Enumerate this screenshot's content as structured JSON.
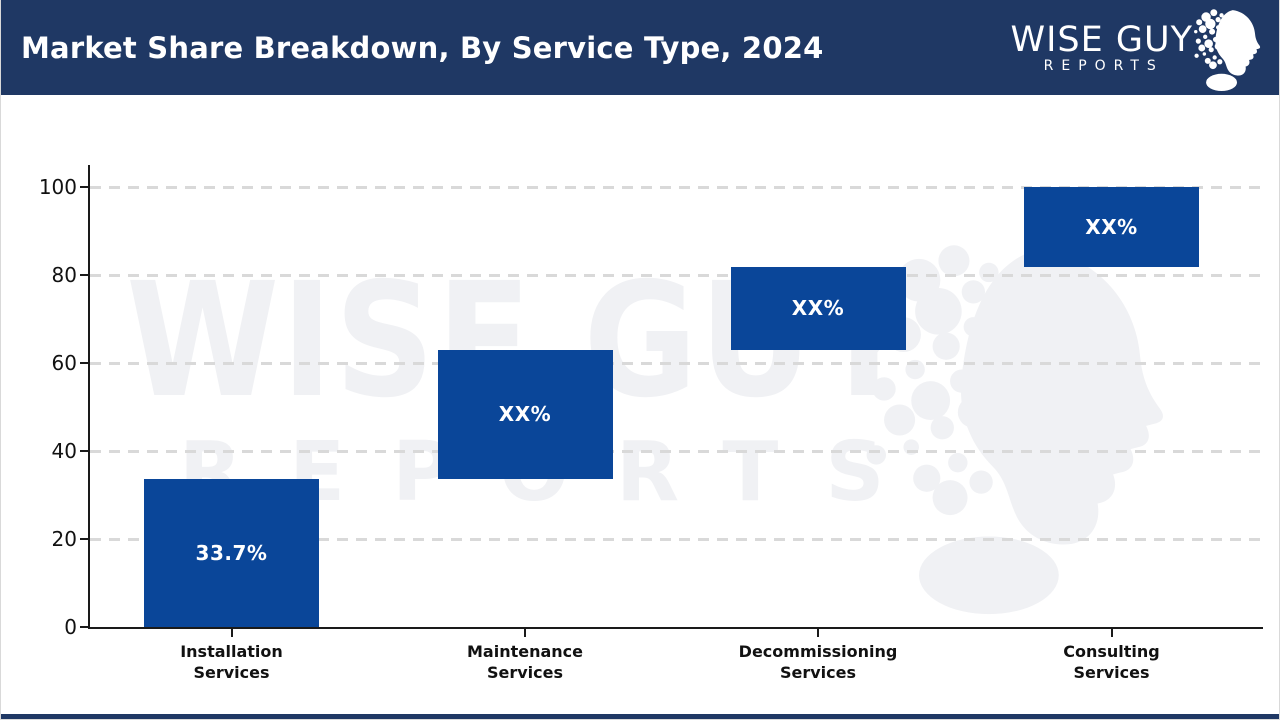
{
  "header": {
    "title": "Market Share Breakdown, By Service Type, 2024",
    "logo": {
      "name_line": "WISE GUY",
      "sub_line": "REPORTS"
    }
  },
  "watermark": {
    "big_text": "WISE GUY",
    "sub_text": "REPORTS"
  },
  "colors": {
    "header_bg": "#1F3864",
    "bar": "#0A4699",
    "grid": "#D9D9D9",
    "axis": "#1A1A1A",
    "tick_text": "#111111",
    "label_on_bar": "#FFFFFF",
    "watermark": "#F0F1F4"
  },
  "chart_data": {
    "type": "bar",
    "subtype": "stepped-waterfall",
    "title": "Market Share Breakdown, By Service Type, 2024",
    "xlabel": "",
    "ylabel": "",
    "ylim": [
      0,
      105
    ],
    "yticks": [
      0,
      20,
      40,
      60,
      80,
      100
    ],
    "grid": "horizontal-dashed",
    "legend": "none",
    "categories": [
      "Installation Services",
      "Maintenance Services",
      "Decommissioning Services",
      "Consulting Services"
    ],
    "bars": [
      {
        "category_line1": "Installation",
        "category_line2": "Services",
        "label": "33.7%",
        "start": 0,
        "end": 33.7
      },
      {
        "category_line1": "Maintenance",
        "category_line2": "Services",
        "label": "XX%",
        "start": 33.7,
        "end": 63.0
      },
      {
        "category_line1": "Decommissioning",
        "category_line2": "Services",
        "label": "XX%",
        "start": 63.0,
        "end": 81.8
      },
      {
        "category_line1": "Consulting",
        "category_line2": "Services",
        "label": "XX%",
        "start": 81.8,
        "end": 100
      }
    ]
  }
}
